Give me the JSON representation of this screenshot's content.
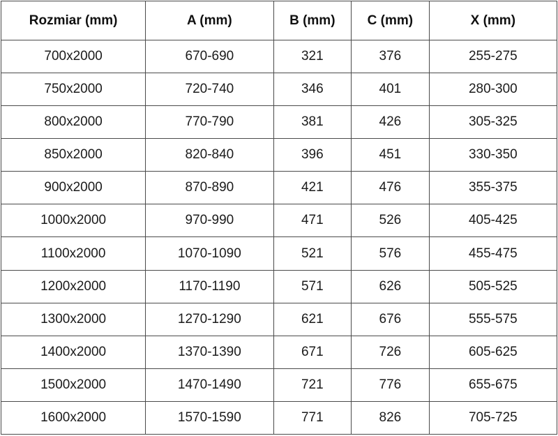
{
  "chart_data": {
    "type": "table",
    "title": "",
    "columns": [
      "Rozmiar (mm)",
      "A (mm)",
      "B (mm)",
      "C (mm)",
      "X (mm)"
    ],
    "rows": [
      [
        "700x2000",
        "670-690",
        "321",
        "376",
        "255-275"
      ],
      [
        "750x2000",
        "720-740",
        "346",
        "401",
        "280-300"
      ],
      [
        "800x2000",
        "770-790",
        "381",
        "426",
        "305-325"
      ],
      [
        "850x2000",
        "820-840",
        "396",
        "451",
        "330-350"
      ],
      [
        "900x2000",
        "870-890",
        "421",
        "476",
        "355-375"
      ],
      [
        "1000x2000",
        "970-990",
        "471",
        "526",
        "405-425"
      ],
      [
        "1100x2000",
        "1070-1090",
        "521",
        "576",
        "455-475"
      ],
      [
        "1200x2000",
        "1170-1190",
        "571",
        "626",
        "505-525"
      ],
      [
        "1300x2000",
        "1270-1290",
        "621",
        "676",
        "555-575"
      ],
      [
        "1400x2000",
        "1370-1390",
        "671",
        "726",
        "605-625"
      ],
      [
        "1500x2000",
        "1470-1490",
        "721",
        "776",
        "655-675"
      ],
      [
        "1600x2000",
        "1570-1590",
        "771",
        "826",
        "705-725"
      ]
    ],
    "layout": {
      "grid": true,
      "border_color": "#4a4a4a",
      "background": "#ffffff",
      "text_color": "#1b1b1b",
      "header_bold": true,
      "cell_align": "center"
    }
  }
}
